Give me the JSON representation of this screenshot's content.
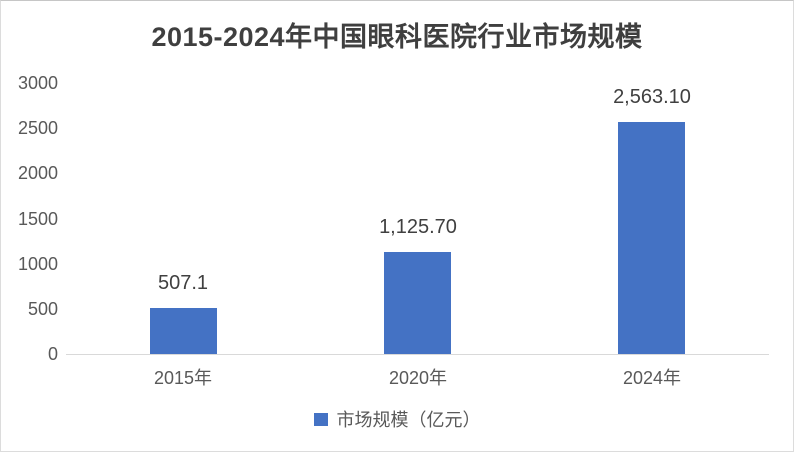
{
  "title": "2015-2024年中国眼科医院行业市场规模",
  "legend": {
    "label": "市场规模（亿元）"
  },
  "colors": {
    "bar": "#4472C4",
    "axis_line": "#D9D9D9",
    "tick_text": "#595959",
    "value_text": "#404040",
    "title_text": "#3F3F3F"
  },
  "chart_data": {
    "type": "bar",
    "title": "2015-2024年中国眼科医院行业市场规模",
    "categories": [
      "2015年",
      "2020年",
      "2024年"
    ],
    "series": [
      {
        "name": "市场规模（亿元）",
        "values": [
          507.1,
          1125.7,
          2563.1
        ]
      }
    ],
    "value_labels": [
      "507.1",
      "1,125.70",
      "2,563.10"
    ],
    "xlabel": "",
    "ylabel": "",
    "ylim": [
      0,
      3000
    ],
    "ytick_interval": 500,
    "ytick_labels": [
      "0",
      "500",
      "1000",
      "1500",
      "2000",
      "2500",
      "3000"
    ],
    "grid": false,
    "legend_position": "bottom"
  }
}
